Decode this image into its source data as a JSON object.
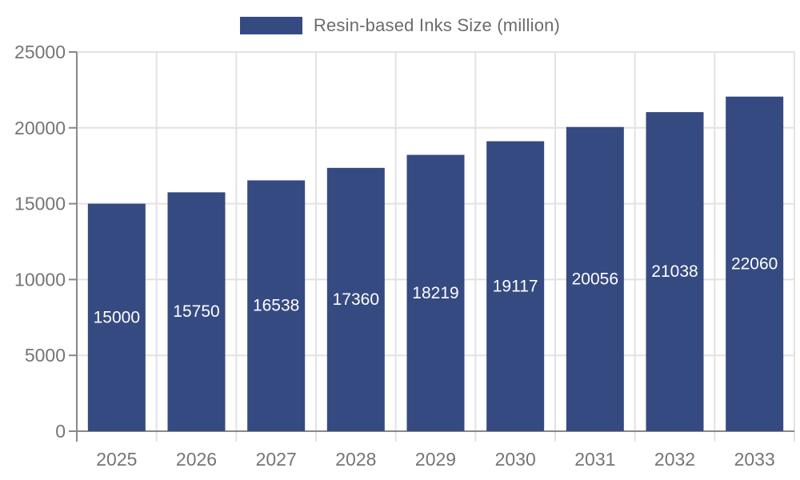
{
  "chart_data": {
    "type": "bar",
    "title": "Resin-based Inks Size (million)",
    "legend_label": "Resin-based Inks Size (million)",
    "legend_position": "top-center",
    "categories": [
      "2025",
      "2026",
      "2027",
      "2028",
      "2029",
      "2030",
      "2031",
      "2032",
      "2033"
    ],
    "series": [
      {
        "name": "Resin-based Inks Size (million)",
        "values": [
          15000,
          15750,
          16538,
          17360,
          18219,
          19117,
          20056,
          21038,
          22060
        ]
      }
    ],
    "bar_value_labels": [
      "15000",
      "15750",
      "16538",
      "17360",
      "18219",
      "19117",
      "20056",
      "21038",
      "22060"
    ],
    "xlabel": "",
    "ylabel": "",
    "ylim": [
      0,
      25000
    ],
    "yticks": [
      0,
      5000,
      10000,
      15000,
      20000,
      25000
    ],
    "ytick_labels": [
      "0",
      "5000",
      "10000",
      "15000",
      "20000",
      "25000"
    ],
    "grid": true,
    "colors": {
      "bar": "#364a82",
      "grid": "#e2e2e6",
      "axis": "#888888",
      "tick_label": "#757575",
      "legend_text": "#6b6b6b",
      "bar_label": "#ffffff",
      "background": "#ffffff"
    }
  }
}
